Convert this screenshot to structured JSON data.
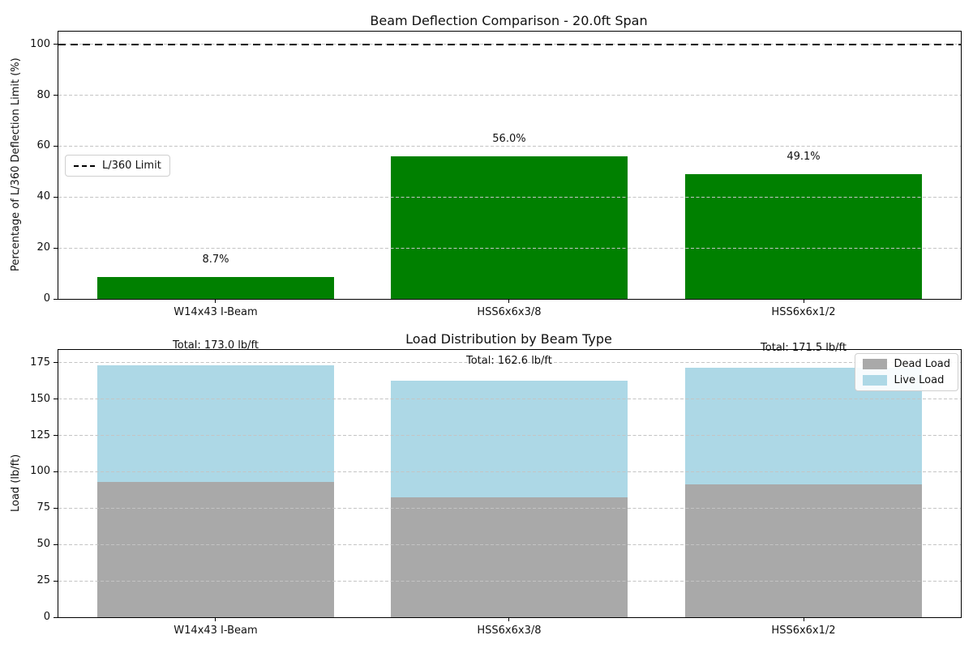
{
  "figure": {
    "background": "#ffffff"
  },
  "chart_data": [
    {
      "type": "bar",
      "title": "Beam Deflection Comparison - 20.0ft Span",
      "xlabel": "",
      "ylabel": "Percentage of L/360 Deflection Limit (%)",
      "categories": [
        "W14x43 I-Beam",
        "HSS6x6x3/8",
        "HSS6x6x1/2"
      ],
      "values": [
        8.7,
        56.0,
        49.1
      ],
      "value_labels": [
        "8.7%",
        "56.0%",
        "49.1%"
      ],
      "bar_color": "#008000",
      "ylim": [
        0,
        105
      ],
      "yticks": [
        0,
        20,
        40,
        60,
        80,
        100
      ],
      "grid": "dashed horizontal",
      "limit_line": {
        "value": 100,
        "color": "#000000",
        "style": "dashed",
        "label": "L/360 Limit"
      },
      "legend_position": "center-left"
    },
    {
      "type": "stacked-bar",
      "title": "Load Distribution by Beam Type",
      "xlabel": "",
      "ylabel": "Load (lb/ft)",
      "categories": [
        "W14x43 I-Beam",
        "HSS6x6x3/8",
        "HSS6x6x1/2"
      ],
      "series": [
        {
          "name": "Dead Load",
          "color": "#a9a9a9",
          "values": [
            93.0,
            82.6,
            91.5
          ]
        },
        {
          "name": "Live Load",
          "color": "#add8e6",
          "values": [
            80.0,
            80.0,
            80.0
          ]
        }
      ],
      "total_values": [
        173.0,
        162.6,
        171.5
      ],
      "total_labels": [
        "Total: 173.0 lb/ft",
        "Total: 162.6 lb/ft",
        "Total: 171.5 lb/ft"
      ],
      "ylim": [
        0,
        183.75
      ],
      "yticks": [
        0,
        25,
        50,
        75,
        100,
        125,
        150,
        175
      ],
      "grid": "dashed horizontal",
      "legend_position": "top-right"
    }
  ]
}
